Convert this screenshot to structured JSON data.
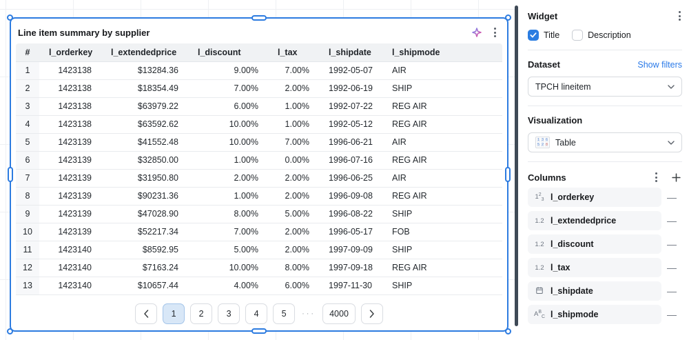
{
  "canvas": {
    "widget": {
      "title": "Line item summary by supplier",
      "table": {
        "headers": [
          "#",
          "l_orderkey",
          "l_extendedprice",
          "l_discount",
          "l_tax",
          "l_shipdate",
          "l_shipmode"
        ],
        "aligns": [
          "center",
          "right",
          "right",
          "right",
          "right",
          "left",
          "left"
        ],
        "rows": [
          [
            "1",
            "1423138",
            "$13284.36",
            "9.00%",
            "7.00%",
            "1992-05-07",
            "AIR"
          ],
          [
            "2",
            "1423138",
            "$18354.49",
            "7.00%",
            "2.00%",
            "1992-06-19",
            "SHIP"
          ],
          [
            "3",
            "1423138",
            "$63979.22",
            "6.00%",
            "1.00%",
            "1992-07-22",
            "REG AIR"
          ],
          [
            "4",
            "1423138",
            "$63592.62",
            "10.00%",
            "1.00%",
            "1992-05-12",
            "REG AIR"
          ],
          [
            "5",
            "1423139",
            "$41552.48",
            "10.00%",
            "7.00%",
            "1996-06-21",
            "AIR"
          ],
          [
            "6",
            "1423139",
            "$32850.00",
            "1.00%",
            "0.00%",
            "1996-07-16",
            "REG AIR"
          ],
          [
            "7",
            "1423139",
            "$31950.80",
            "2.00%",
            "2.00%",
            "1996-06-25",
            "AIR"
          ],
          [
            "8",
            "1423139",
            "$90231.36",
            "1.00%",
            "2.00%",
            "1996-09-08",
            "REG AIR"
          ],
          [
            "9",
            "1423139",
            "$47028.90",
            "8.00%",
            "5.00%",
            "1996-08-22",
            "SHIP"
          ],
          [
            "10",
            "1423139",
            "$52217.34",
            "7.00%",
            "2.00%",
            "1996-05-17",
            "FOB"
          ],
          [
            "11",
            "1423140",
            "$8592.95",
            "5.00%",
            "2.00%",
            "1997-09-09",
            "SHIP"
          ],
          [
            "12",
            "1423140",
            "$7163.24",
            "10.00%",
            "8.00%",
            "1997-09-18",
            "REG AIR"
          ],
          [
            "13",
            "1423140",
            "$10657.44",
            "4.00%",
            "6.00%",
            "1997-11-30",
            "SHIP"
          ]
        ]
      },
      "pagination": {
        "pages": [
          "1",
          "2",
          "3",
          "4",
          "5",
          "···",
          "4000"
        ],
        "active_page": "1",
        "ellipsis": "···"
      }
    }
  },
  "panel": {
    "widget_section": {
      "title": "Widget",
      "checkboxes": [
        {
          "label": "Title",
          "checked": true
        },
        {
          "label": "Description",
          "checked": false
        }
      ]
    },
    "dataset_section": {
      "title": "Dataset",
      "show_filters_link": "Show filters",
      "selected_dataset": "TPCH lineitem"
    },
    "visualization_section": {
      "title": "Visualization",
      "selected_visualization": "Table",
      "table_icon_digits": [
        "1",
        "3",
        "6",
        "5",
        "2",
        "8"
      ]
    },
    "columns_section": {
      "title": "Columns",
      "items": [
        {
          "name": "l_orderkey",
          "type": "integer"
        },
        {
          "name": "l_extendedprice",
          "type": "number"
        },
        {
          "name": "l_discount",
          "type": "number"
        },
        {
          "name": "l_tax",
          "type": "number"
        },
        {
          "name": "l_shipdate",
          "type": "date"
        },
        {
          "name": "l_shipmode",
          "type": "text"
        }
      ]
    }
  },
  "colors": {
    "selection_blue": "#2c7be0",
    "checkbox_blue": "#2b7de1",
    "link_blue": "#2979e8",
    "active_page_bg": "#d8e7f7",
    "sparkle_gradient_start": "#6f8df7",
    "sparkle_gradient_end": "#ec4899",
    "panel_resize_bar": "#3f4a56"
  }
}
